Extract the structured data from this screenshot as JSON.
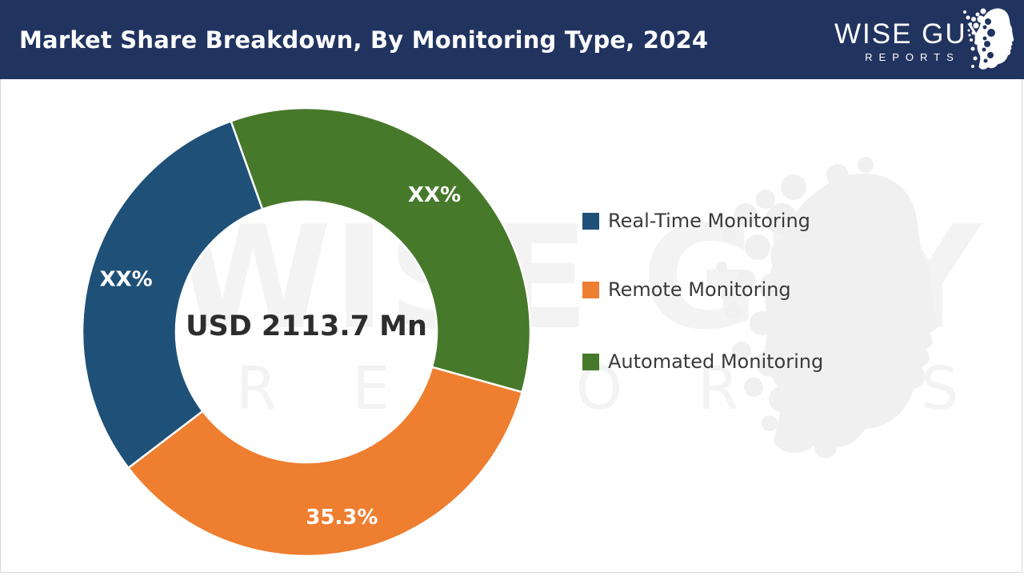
{
  "header": {
    "title": "Market Share Breakdown, By Monitoring Type, 2024",
    "logo": {
      "primary": "WISE GUY",
      "secondary": "REPORTS"
    }
  },
  "chart_data": {
    "type": "pie",
    "subtype": "donut",
    "title": "Market Share Breakdown, By Monitoring Type, 2024",
    "center_label": "USD 2113.7 Mn",
    "start_angle_deg_clockwise_from_top": -19.7,
    "slices": [
      {
        "name": "Automated Monitoring",
        "percent_label": "XX%",
        "percent_est": 34.8,
        "color": "#47792B"
      },
      {
        "name": "Remote Monitoring",
        "percent_label": "35.3%",
        "percent_est": 35.3,
        "color": "#EE7E30"
      },
      {
        "name": "Real-Time Monitoring",
        "percent_label": "XX%",
        "percent_est": 29.9,
        "color": "#1F5078"
      }
    ],
    "legend_position": "right"
  },
  "legend": {
    "items": [
      {
        "label": "Real-Time Monitoring",
        "color": "#1F5078"
      },
      {
        "label": "Remote Monitoring",
        "color": "#EE7E30"
      },
      {
        "label": "Automated Monitoring",
        "color": "#47792B"
      }
    ]
  },
  "watermark": {
    "primary": "WISE GUY",
    "secondary": "REPORTS"
  },
  "colors": {
    "header_bg": "#213460",
    "title_text": "#FFFFFF",
    "slice_gap": "#FFFFFF",
    "center_text": "#2D2D2D",
    "legend_text": "#3A3A3A",
    "watermark": "#F3F3F3",
    "watermark_head": "#F0F0F0",
    "frame_border": "#D9D9D9"
  }
}
